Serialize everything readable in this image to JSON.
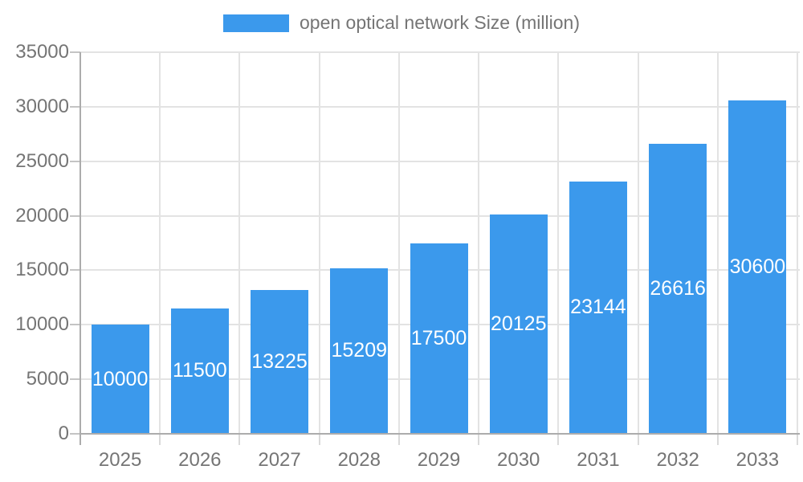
{
  "chart_data": {
    "type": "bar",
    "title": "",
    "legend": {
      "label": "open optical network Size (million)",
      "position": "top"
    },
    "categories": [
      "2025",
      "2026",
      "2027",
      "2028",
      "2029",
      "2030",
      "2031",
      "2032",
      "2033"
    ],
    "values": [
      10000,
      11500,
      13225,
      15209,
      17500,
      20125,
      23144,
      26616,
      30600
    ],
    "bar_labels": [
      "10000",
      "11500",
      "13225",
      "15209",
      "17500",
      "20125",
      "23144",
      "26616",
      "30600"
    ],
    "xlabel": "",
    "ylabel": "",
    "ylim": [
      0,
      35000
    ],
    "ytick_step": 5000,
    "yticks": [
      "0",
      "5000",
      "10000",
      "15000",
      "20000",
      "25000",
      "30000",
      "35000"
    ],
    "grid": "on",
    "legend_position": "top-center",
    "colors": {
      "bar": "#3B99EC",
      "axis_text": "#757575",
      "bar_label_text": "#FFFFFF",
      "gridline": "#E3E3E3",
      "axis_line": "#ACACAC",
      "y_tick": "#C4C4C4",
      "x_tick": "#DADADA",
      "background": "#FFFFFF"
    }
  }
}
